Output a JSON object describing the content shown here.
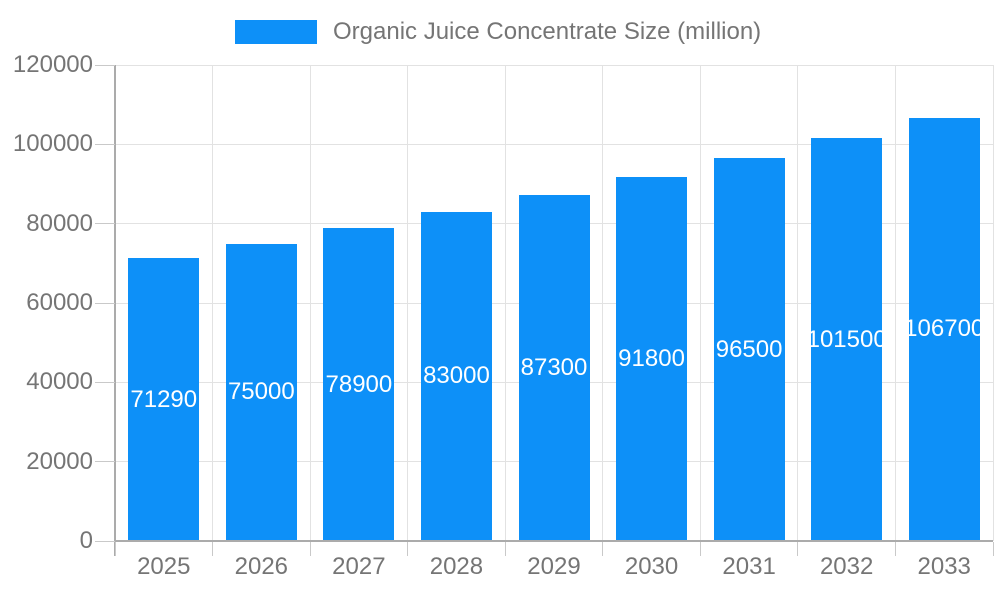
{
  "chart_data": {
    "type": "bar",
    "legend": "Organic Juice Concentrate Size (million)",
    "categories": [
      "2025",
      "2026",
      "2027",
      "2028",
      "2029",
      "2030",
      "2031",
      "2032",
      "2033"
    ],
    "values": [
      71290,
      75000,
      78900,
      83000,
      87300,
      91800,
      96500,
      101500,
      106700
    ],
    "title": "Organic Juice Concentrate Size (million)",
    "xlabel": "",
    "ylabel": "",
    "ylim": [
      0,
      120000
    ],
    "y_ticks": [
      0,
      20000,
      40000,
      60000,
      80000,
      100000,
      120000
    ],
    "grid": "on",
    "legend_position": "top-center",
    "colors": {
      "bar": "#0D90F8",
      "grid": "#E2E2E2",
      "axis": "#ABABAB",
      "tick": "#C9C9C9",
      "text": "#757575",
      "value_text": "#FFFFFF"
    }
  }
}
